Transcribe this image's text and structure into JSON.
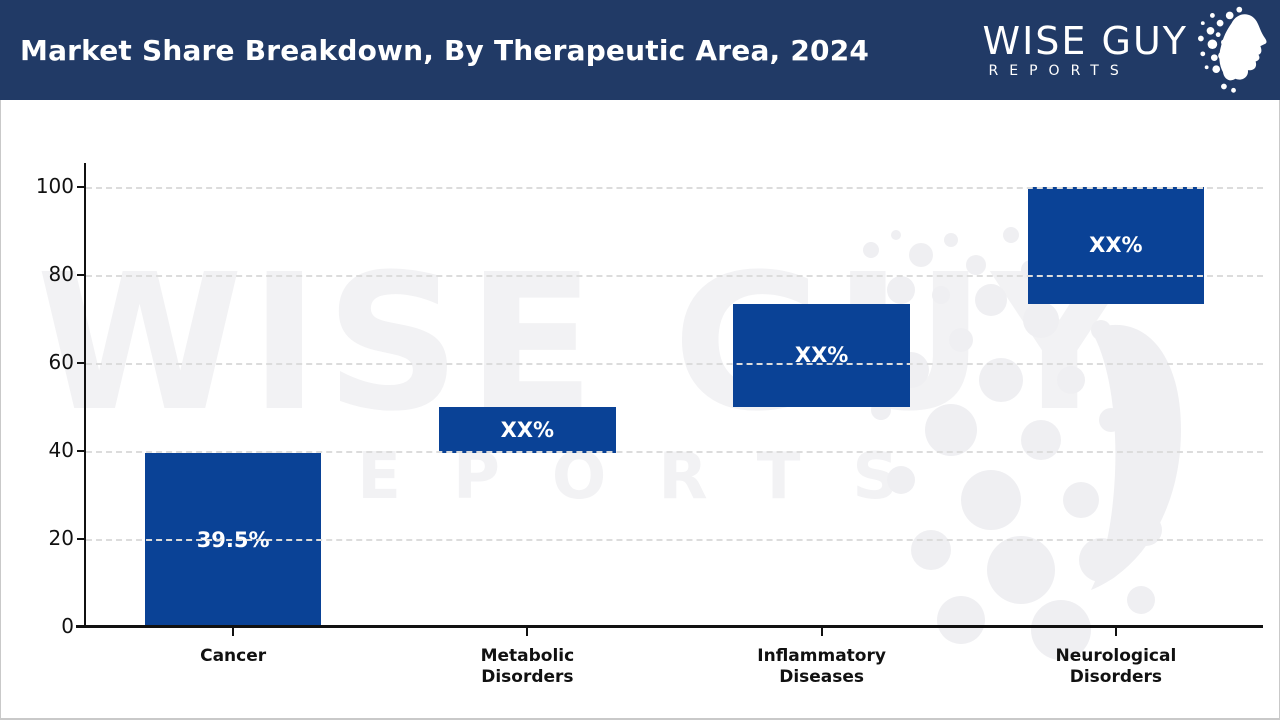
{
  "header": {
    "title": "Market Share Breakdown, By Therapeutic Area, 2024",
    "logo": {
      "line1": "WISE GUY",
      "line2": "REPORTS"
    }
  },
  "watermark": {
    "line1": "WISE GUY",
    "line2": "REPORTS"
  },
  "colors": {
    "header_bg": "#213a66",
    "bar": "#0a4296",
    "grid": "#dcdcdc",
    "axis": "#111111",
    "bar_label_text": "#ffffff",
    "watermark": "#f2f2f4"
  },
  "chart_data": {
    "type": "bar",
    "subtype": "waterfall",
    "title": "Market Share Breakdown, By Therapeutic Area, 2024",
    "categories": [
      "Cancer",
      "Metabolic Disorders",
      "Inflammatory Diseases",
      "Neurological Disorders"
    ],
    "segments": [
      {
        "category": "Cancer",
        "start": 0,
        "end": 39.5,
        "display": "39.5%"
      },
      {
        "category": "Metabolic Disorders",
        "start": 39.5,
        "end": 50,
        "display": "XX%"
      },
      {
        "category": "Inflammatory Diseases",
        "start": 50,
        "end": 73.5,
        "display": "XX%"
      },
      {
        "category": "Neurological Disorders",
        "start": 73.5,
        "end": 100,
        "display": "XX%"
      }
    ],
    "ylim": [
      0,
      100
    ],
    "yticks": [
      0,
      20,
      40,
      60,
      80,
      100
    ],
    "grid": "horizontal-dashed",
    "legend": "none",
    "bar_color": "#0a4296"
  }
}
